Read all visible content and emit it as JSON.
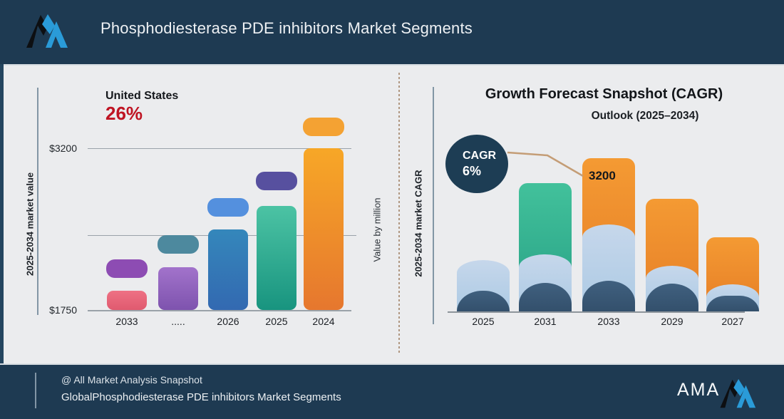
{
  "header": {
    "title": "Phosphodiesterase PDE inhibitors Market Segments"
  },
  "footer": {
    "credit": "@ All Market Analysis Snapshot",
    "source": "GlobalPhosphodiesterase PDE inhibitors Market Segments",
    "brand": "AMA"
  },
  "chart_data": [
    {
      "type": "bar",
      "title": "United States",
      "highlight_value": "26%",
      "highlight_color": "#bf1423",
      "ylabel": "2025-2034 market value",
      "ylabel_right": "Value by million",
      "yticks": [
        "$3200",
        "$1750"
      ],
      "ylim": [
        1750,
        3200
      ],
      "grid": true,
      "categories": [
        "2033",
        ".....",
        "2026",
        "2025",
        "2024"
      ],
      "values": [
        1920,
        2135,
        2470,
        2685,
        3200
      ],
      "bar_colors": [
        [
          "#ee7184",
          "#e05a6f"
        ],
        [
          "#a273cb",
          "#7e53ae"
        ],
        [
          "#3487bb",
          "#3369b1"
        ],
        [
          "#4cc3a4",
          "#18947f"
        ],
        [
          "#f7a727",
          "#e6772e"
        ]
      ],
      "cap_colors": [
        "#8d4cb3",
        "#4d899e",
        "#5490de",
        "#57509f",
        "#f4a233"
      ]
    },
    {
      "type": "stacked-bar",
      "title": "Growth Forecast Snapshot (CAGR)",
      "subtitle": "Outlook (2025–2034)",
      "ylabel": "2025-2034 market CAGR",
      "badge": {
        "line1": "CAGR",
        "line2": "6%",
        "color": "#1d3d54"
      },
      "data_label": {
        "category": "2033",
        "value": "3200"
      },
      "categories": [
        "2025",
        "2031",
        "2033",
        "2029",
        "2027"
      ],
      "series": [
        {
          "name": "base",
          "values": [
            29,
            40,
            43,
            39,
            22
          ]
        },
        {
          "name": "mid",
          "values": [
            43,
            40,
            79,
            25,
            16
          ]
        },
        {
          "name": "top",
          "values": [
            0,
            100,
            93,
            94,
            66
          ],
          "colors": [
            "",
            "teal",
            "orange",
            "orange",
            "orange"
          ]
        }
      ],
      "segment_colors": {
        "base": [
          "#40607f",
          "#33506c"
        ],
        "mid": [
          "#c6d7eb",
          "#accae4"
        ],
        "teal": [
          "#42c19b",
          "#27a085"
        ],
        "orange": [
          "#f49a33",
          "#e67e27"
        ]
      },
      "connector_color": "#c49d76"
    }
  ]
}
